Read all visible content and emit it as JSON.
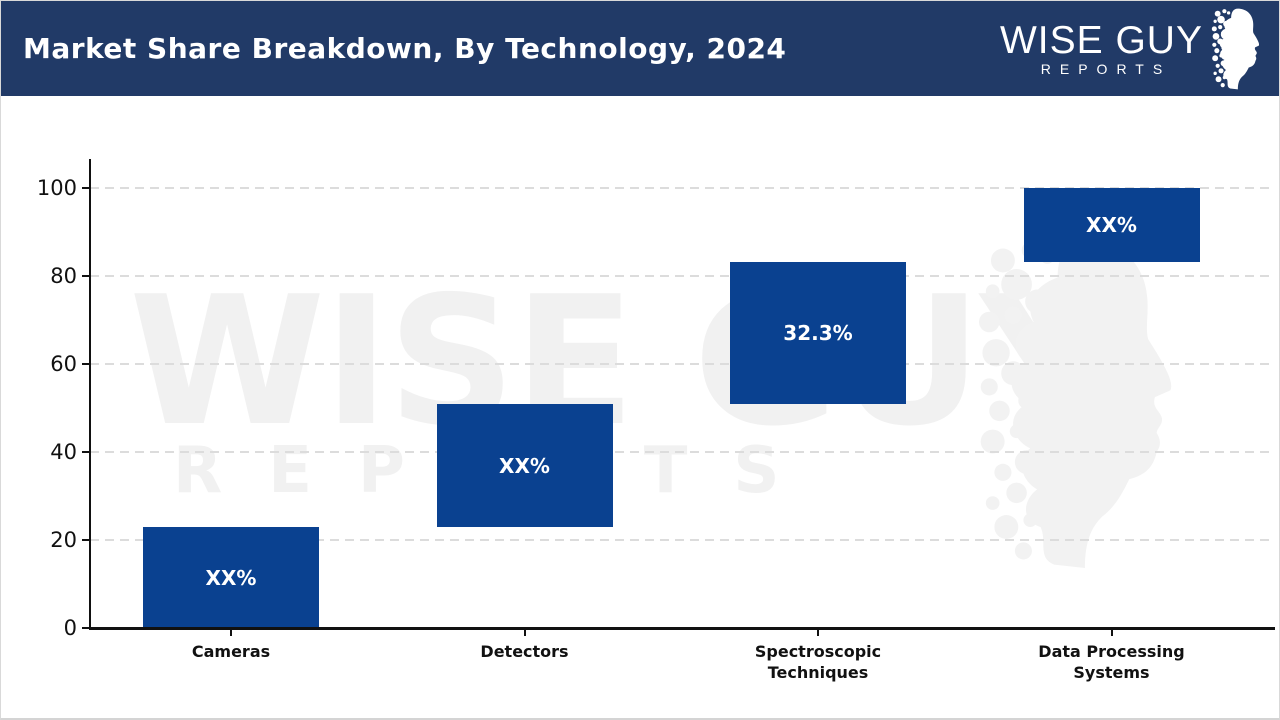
{
  "header": {
    "title": "Market Share Breakdown, By Technology, 2024",
    "logo": {
      "line1": "WISE GUY",
      "line2": "REPORTS"
    }
  },
  "watermark": {
    "line1": "WISE GUY",
    "line2": "REPORTS"
  },
  "colors": {
    "header_bg": "#213A67",
    "bar": "#0A4190",
    "grid": "#DCDCDC",
    "axis": "#111111",
    "watermark": "#F1F1F1",
    "title_text": "#FFFFFF",
    "bar_label_text": "#FFFFFF"
  },
  "chart_data": {
    "type": "bar",
    "subtype": "waterfall",
    "title": "Market Share Breakdown, By Technology, 2024",
    "categories": [
      [
        "Cameras"
      ],
      [
        "Detectors"
      ],
      [
        "Spectroscopic",
        "Techniques"
      ],
      [
        "Data Processing",
        "Systems"
      ]
    ],
    "segments": [
      {
        "label": "XX%",
        "start": 0,
        "end": 22.9
      },
      {
        "label": "XX%",
        "start": 22.9,
        "end": 50.8
      },
      {
        "label": "32.3%",
        "start": 50.8,
        "end": 83.1
      },
      {
        "label": "XX%",
        "start": 83.1,
        "end": 100
      }
    ],
    "increments": [
      22.9,
      27.9,
      32.3,
      16.9
    ],
    "ylim": [
      0,
      100
    ],
    "yticks": [
      0,
      20,
      40,
      60,
      80,
      100
    ],
    "xlabel": "",
    "ylabel": "",
    "grid": "horizontal-dashed",
    "legend": "none"
  }
}
